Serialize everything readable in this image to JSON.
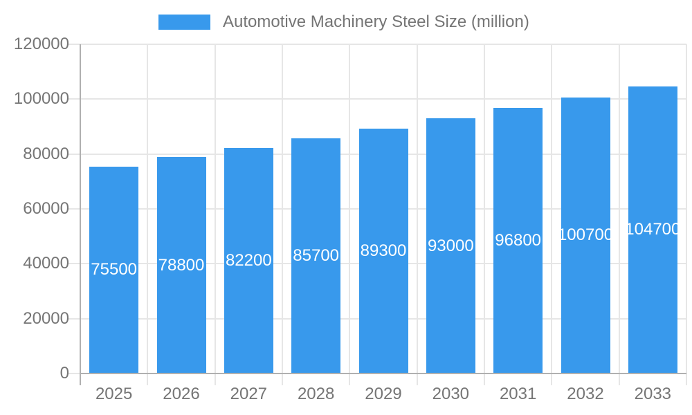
{
  "legend": {
    "label": "Automotive Machinery Steel Size (million)"
  },
  "chart_data": {
    "type": "bar",
    "title": "Automotive Machinery Steel Size (million)",
    "categories": [
      "2025",
      "2026",
      "2027",
      "2028",
      "2029",
      "2030",
      "2031",
      "2032",
      "2033"
    ],
    "values": [
      75500,
      78800,
      82200,
      85700,
      89300,
      93000,
      96800,
      100700,
      104700
    ],
    "value_labels": [
      "75500",
      "78800",
      "82200",
      "85700",
      "89300",
      "93000",
      "96800",
      "100700",
      "104700"
    ],
    "xlabel": "",
    "ylabel": "",
    "ylim": [
      0,
      120000
    ],
    "ytick_step": 20000,
    "yticks": [
      0,
      20000,
      40000,
      60000,
      80000,
      100000,
      120000
    ],
    "grid": true,
    "legend_position": "top"
  },
  "colors": {
    "bar": "#3899ec",
    "grid": "#e6e6e6",
    "axis": "#b0b0b0",
    "text": "#757575",
    "value_label": "#ffffff",
    "background": "#ffffff"
  }
}
